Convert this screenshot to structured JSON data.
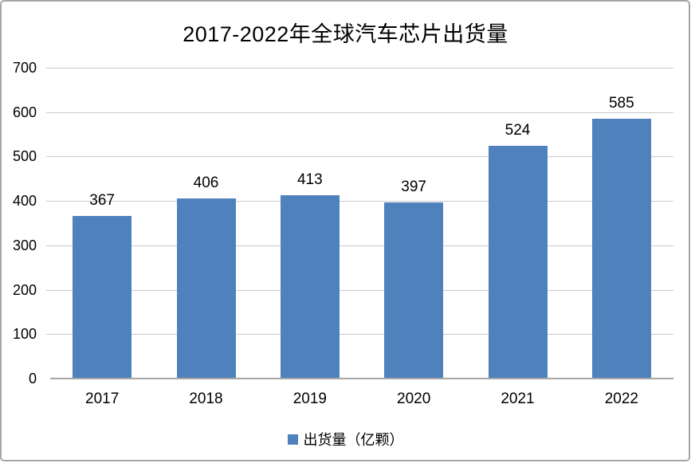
{
  "chart_data": {
    "type": "bar",
    "title": "2017-2022年全球汽车芯片出货量",
    "categories": [
      "2017",
      "2018",
      "2019",
      "2020",
      "2021",
      "2022"
    ],
    "values": [
      367,
      406,
      413,
      397,
      524,
      585
    ],
    "data_labels": [
      "367",
      "406",
      "413",
      "397",
      "524",
      "585"
    ],
    "ylim": [
      0,
      700
    ],
    "yticks": [
      0,
      100,
      200,
      300,
      400,
      500,
      600,
      700
    ],
    "grid": true,
    "legend": {
      "label": "出货量（亿颗）",
      "position": "bottom"
    },
    "colors": {
      "bar": "#4F81BD",
      "gridline": "#C9C9C9",
      "axis_line": "#A6A6A6",
      "text": "#000000",
      "border": "#A6A6A6",
      "background": "#FFFFFF"
    }
  }
}
